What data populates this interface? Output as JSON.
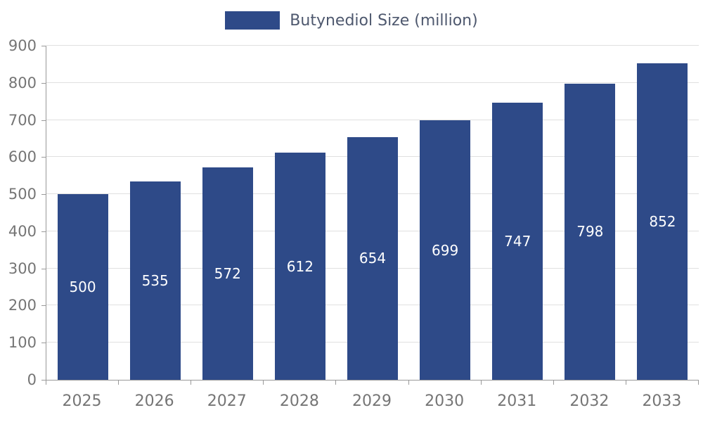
{
  "chart_data": {
    "type": "bar",
    "title": "",
    "legend_position": "top",
    "categories": [
      "2025",
      "2026",
      "2027",
      "2028",
      "2029",
      "2030",
      "2031",
      "2032",
      "2033"
    ],
    "series": [
      {
        "name": "Butynediol Size (million)",
        "values": [
          500,
          535,
          572,
          612,
          654,
          699,
          747,
          798,
          852
        ]
      }
    ],
    "xlabel": "",
    "ylabel": "",
    "ylim": [
      0,
      900
    ],
    "ytick_step": 100,
    "ytick_labels": [
      "0",
      "100",
      "200",
      "300",
      "400",
      "500",
      "600",
      "700",
      "800",
      "900"
    ],
    "grid": true,
    "bar_color": "#2e4a88",
    "value_label_color": "#ffffff",
    "axis_tick_label_color": "#757575",
    "grid_color": "#e0e0e0",
    "axis_line_color": "#999999",
    "legend_text_color": "#4e586e"
  }
}
